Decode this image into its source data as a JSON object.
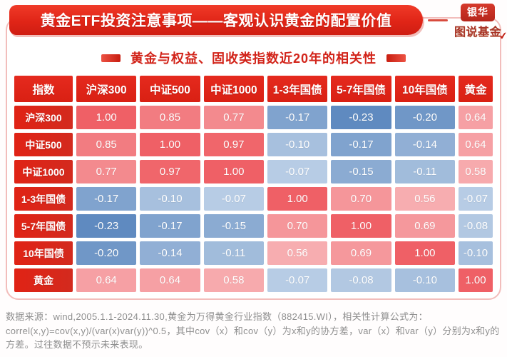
{
  "header": {
    "banner": "黄金ETF投资注意事项——客观认识黄金的配置价值",
    "logo_top": "银华",
    "logo_bottom": "图说基金",
    "logo_check": "✔"
  },
  "subtitle": "黄金与权益、固收类指数近20年的相关性",
  "chart_data": {
    "type": "heatmap",
    "title": "黄金与权益、固收类指数近20年的相关性",
    "corner_label": "指数",
    "categories": [
      "沪深300",
      "中证500",
      "中证1000",
      "1-3年国债",
      "5-7年国债",
      "10年国债",
      "黄金"
    ],
    "matrix": [
      [
        1.0,
        0.85,
        0.77,
        -0.17,
        -0.23,
        -0.2,
        0.64
      ],
      [
        0.85,
        1.0,
        0.97,
        -0.1,
        -0.17,
        -0.14,
        0.64
      ],
      [
        0.77,
        0.97,
        1.0,
        -0.07,
        -0.15,
        -0.11,
        0.58
      ],
      [
        -0.17,
        -0.1,
        -0.07,
        1.0,
        0.7,
        0.56,
        -0.07
      ],
      [
        -0.23,
        -0.17,
        -0.15,
        0.7,
        1.0,
        0.69,
        -0.08
      ],
      [
        -0.2,
        -0.14,
        -0.11,
        0.56,
        0.69,
        1.0,
        -0.1
      ],
      [
        0.64,
        0.64,
        0.58,
        -0.07,
        -0.08,
        -0.1,
        1.0
      ]
    ],
    "value_range": [
      -1,
      1
    ],
    "positive_color": "#ef6066",
    "positive_light": "#feeeee",
    "negative_color": "#5482bb",
    "negative_light": "#dee9f5",
    "header_color": "#de2517",
    "value_format": "0.00"
  },
  "footnote": "数据来源：wind,2005.1.1-2024.11.30,黄金为万得黄金行业指数（882415.WI），相关性计算公式为：correl(x,y)=cov(x,y)/(var(x)var(y))^0.5，其中cov（x）和cov（y）为x和y的协方差，var（x）和var（y）分别为x和y的方差。过往数据不预示未来表现。",
  "colors": {
    "banner_red": "#e02517",
    "accent_red": "#d2241a",
    "card_border_pink": "#f2bdbb",
    "footnote_gray": "#8f8f8f"
  }
}
